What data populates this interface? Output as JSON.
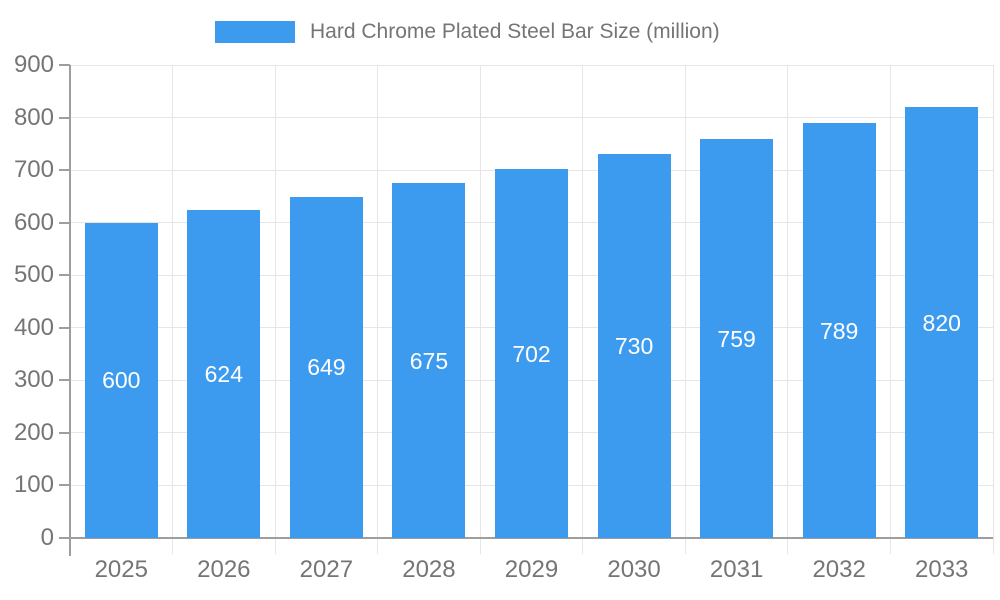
{
  "chart_data": {
    "type": "bar",
    "title": "Hard Chrome Plated Steel Bar Size (million)",
    "categories": [
      "2025",
      "2026",
      "2027",
      "2028",
      "2029",
      "2030",
      "2031",
      "2032",
      "2033"
    ],
    "values": [
      600,
      624,
      649,
      675,
      702,
      730,
      759,
      789,
      820
    ],
    "xlabel": "",
    "ylabel": "",
    "ylim": [
      0,
      900
    ],
    "ytick_interval": 100,
    "ytick_labels": [
      "0",
      "100",
      "200",
      "300",
      "400",
      "500",
      "600",
      "700",
      "800",
      "900"
    ],
    "grid": true,
    "legend_position": "top",
    "bar_labels_visible": true,
    "colors": {
      "bar": "#3D9BEF",
      "axis_line": "#9E9E9E",
      "grid_line": "#E6E6E6",
      "axis_label": "#757575",
      "title_text": "#757575",
      "bar_label": "#FFFFFF",
      "background": "#FFFFFF"
    }
  }
}
